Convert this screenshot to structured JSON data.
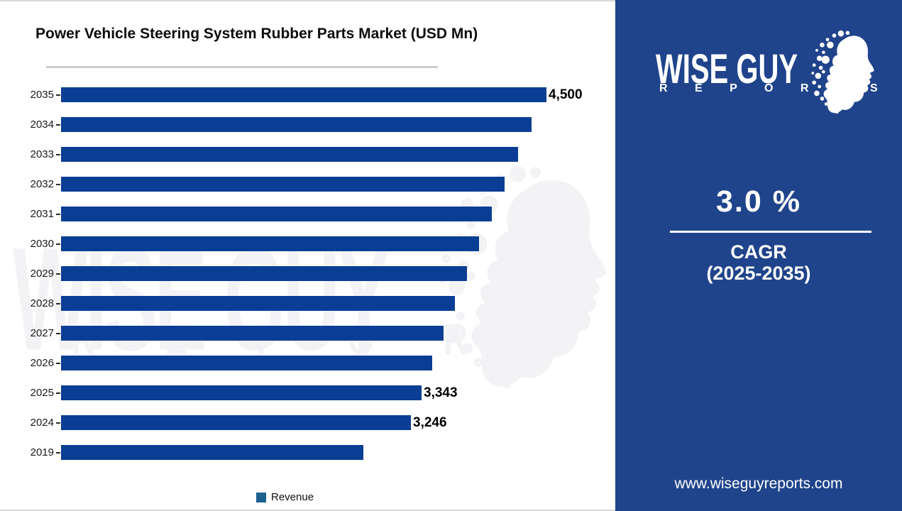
{
  "chart": {
    "title": "Power Vehicle Steering System Rubber Parts Market (USD Mn)",
    "legend_label": "Revenue",
    "legend_color": "#1e628f",
    "bar_color": "#0a3e94"
  },
  "chart_data": {
    "type": "bar",
    "orientation": "horizontal",
    "title": "Power Vehicle Steering System Rubber Parts Market (USD Mn)",
    "unit": "USD Mn",
    "categories": [
      "2035",
      "2034",
      "2033",
      "2032",
      "2031",
      "2030",
      "2029",
      "2028",
      "2027",
      "2026",
      "2025",
      "2024",
      "2019"
    ],
    "values": [
      4500,
      4361,
      4234,
      4111,
      3991,
      3875,
      3762,
      3653,
      3546,
      3443,
      3343,
      3246,
      2800
    ],
    "value_labels": [
      "4,500",
      "",
      "",
      "",
      "",
      "",
      "",
      "",
      "",
      "",
      "3,343",
      "3,246",
      ""
    ],
    "xlim": [
      0,
      4500
    ],
    "grid": false,
    "bar_color": "#0a3e94",
    "legend": [
      {
        "label": "Revenue",
        "color": "#1e628f"
      }
    ],
    "legend_position": "bottom"
  },
  "watermark": {
    "line1": "WISE GUY",
    "line2": "R E P O R T S"
  },
  "brand_panel": {
    "background_color": "#20448b",
    "logo_line1": "WISE GUY",
    "logo_line2": "R E P O R T S",
    "cagr_value": "3.0 %",
    "cagr_label": "CAGR",
    "cagr_range": "(2025-2035)",
    "website": "www.wiseguyreports.com"
  }
}
